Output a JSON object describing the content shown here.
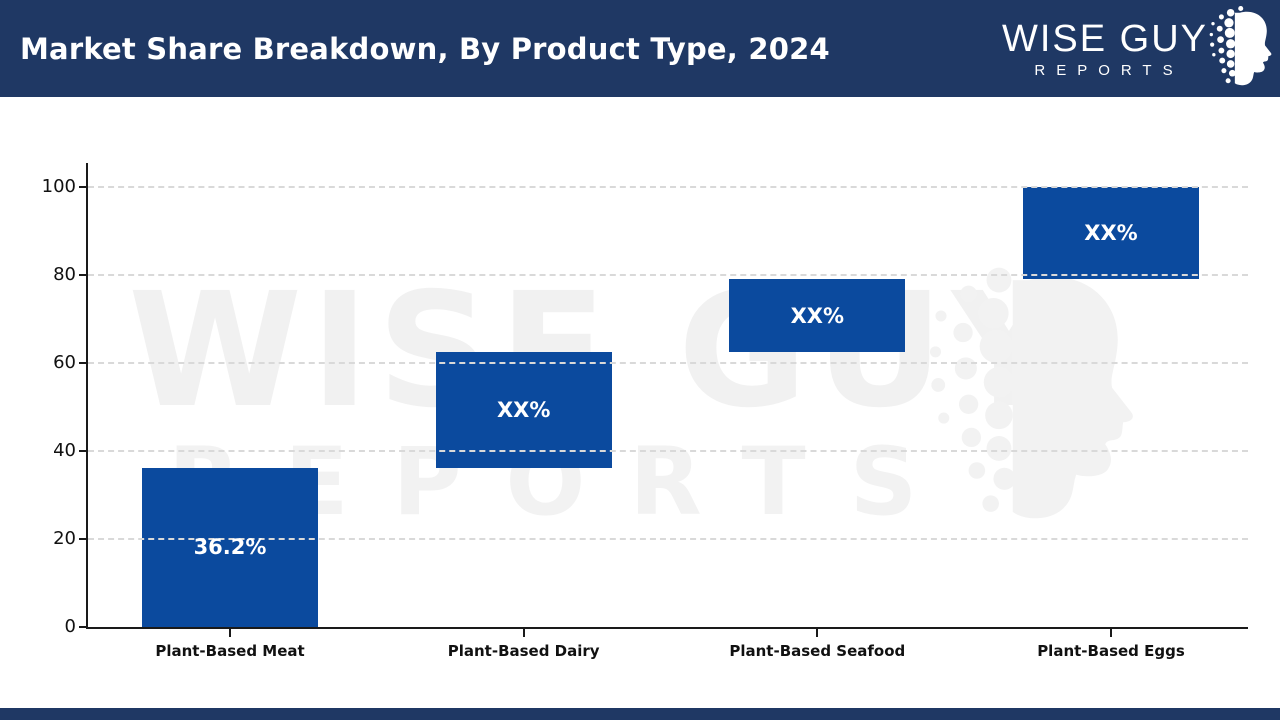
{
  "header": {
    "title": "Market Share Breakdown, By Product Type, 2024",
    "logo": {
      "line1": "WISE GUY",
      "line2": "REPORTS"
    },
    "bg_color": "#1f3864"
  },
  "watermark": {
    "line1": "WISE GUY",
    "line2": "REPORTS"
  },
  "footer": {
    "bg_color": "#1f3864"
  },
  "colors": {
    "bar": "#0b4a9e",
    "grid": "#d9d9d9",
    "axis": "#1a1a1a",
    "watermark": "#f1f1f1"
  },
  "chart_data": {
    "type": "bar",
    "subtype": "waterfall",
    "title": "Market Share Breakdown, By Product Type, 2024",
    "categories": [
      "Plant-Based Meat",
      "Plant-Based Dairy",
      "Plant-Based Seafood",
      "Plant-Based Eggs"
    ],
    "segments": [
      {
        "category": "Plant-Based Meat",
        "start": 0,
        "end": 36.2,
        "label": "36.2%"
      },
      {
        "category": "Plant-Based Dairy",
        "start": 36.2,
        "end": 62.4,
        "label": "XX%"
      },
      {
        "category": "Plant-Based Seafood",
        "start": 62.4,
        "end": 79.1,
        "label": "XX%"
      },
      {
        "category": "Plant-Based Eggs",
        "start": 79.1,
        "end": 100,
        "label": "XX%"
      }
    ],
    "xlabel": "",
    "ylabel": "",
    "ylim": [
      0,
      100
    ],
    "yticks": [
      0,
      20,
      40,
      60,
      80,
      100
    ],
    "grid": true,
    "gridline_style": "dashed",
    "legend": false,
    "bar_color": "#0b4a9e"
  }
}
